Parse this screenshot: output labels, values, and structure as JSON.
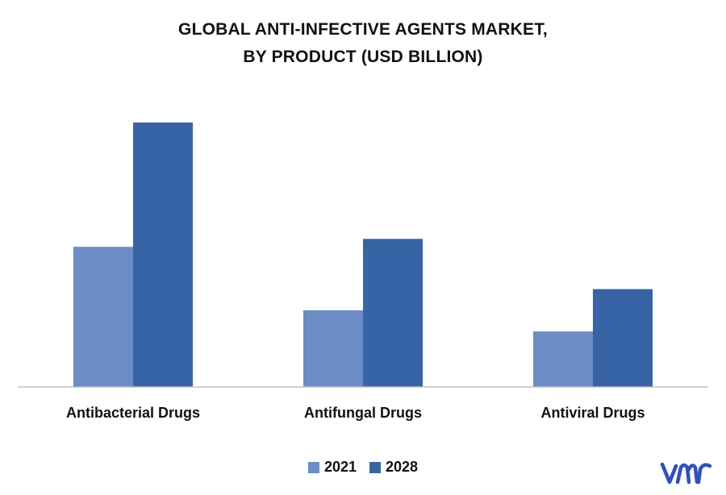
{
  "chart_data": {
    "type": "bar",
    "title_line1": "GLOBAL ANTI-INFECTIVE AGENTS MARKET,",
    "title_line2": "BY PRODUCT (USD BILLION)",
    "categories": [
      "Antibacterial Drugs",
      "Antifungal Drugs",
      "Antiviral Drugs"
    ],
    "series": [
      {
        "name": "2021",
        "color": "#6a8dc6",
        "values": [
          53,
          29,
          21
        ]
      },
      {
        "name": "2028",
        "color": "#3764a6",
        "values": [
          100,
          56,
          37
        ]
      }
    ],
    "ylim": [
      0,
      100
    ],
    "grid": false,
    "legend_position": "bottom"
  },
  "logo": {
    "name": "vmr-logo",
    "color": "#2e4fc7"
  }
}
